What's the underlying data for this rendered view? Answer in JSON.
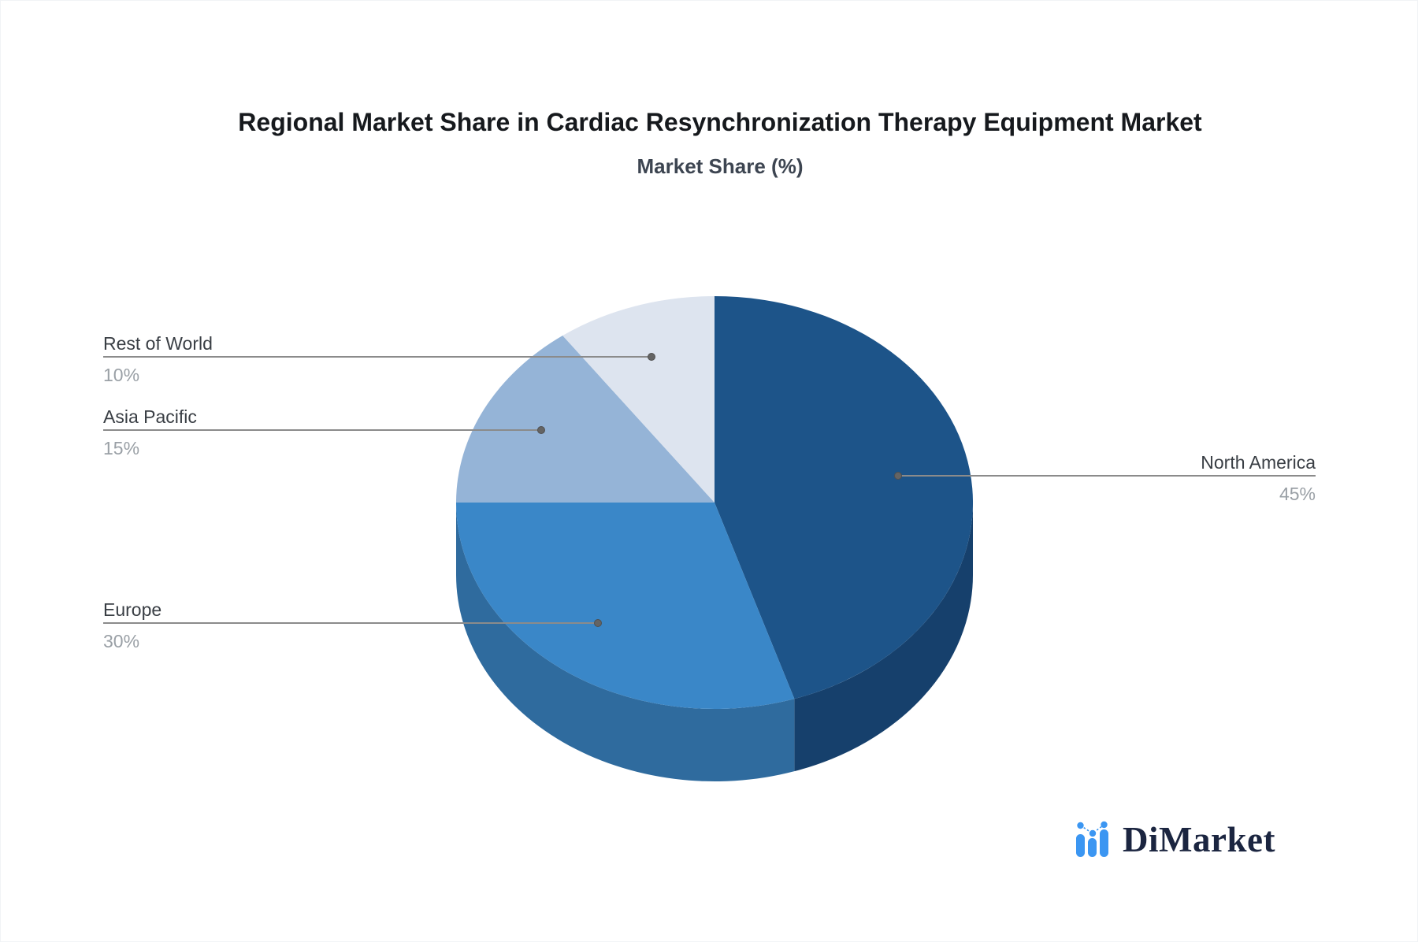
{
  "title": "Regional Market Share in Cardiac Resynchronization Therapy Equipment Market",
  "subtitle": "Market Share (%)",
  "chart_data": {
    "type": "pie",
    "title": "Regional Market Share in Cardiac Resynchronization Therapy Equipment Market",
    "subtitle": "Market Share (%)",
    "unit": "%",
    "effect_3d": true,
    "start_angle_deg": 0,
    "direction": "clockwise",
    "legend_position": "callout-labels",
    "slices": [
      {
        "label": "North America",
        "value": 45,
        "value_label": "45%",
        "color": "#1D5489",
        "side_color": "#16406C",
        "callout_side": "right"
      },
      {
        "label": "Europe",
        "value": 30,
        "value_label": "30%",
        "color": "#3A87C8",
        "side_color": "#2F6B9E",
        "callout_side": "left"
      },
      {
        "label": "Asia Pacific",
        "value": 15,
        "value_label": "15%",
        "color": "#95B4D7",
        "side_color": "#7E9DC0",
        "callout_side": "left"
      },
      {
        "label": "Rest of World",
        "value": 10,
        "value_label": "10%",
        "color": "#DDE4EF",
        "side_color": "#BFC9D8",
        "callout_side": "left"
      }
    ]
  },
  "branding": {
    "logo_text": "DiMarket",
    "logo_icon": "bar-chart-trend-icon",
    "logo_icon_color": "#3B96F2",
    "logo_text_color": "#1B2540"
  }
}
